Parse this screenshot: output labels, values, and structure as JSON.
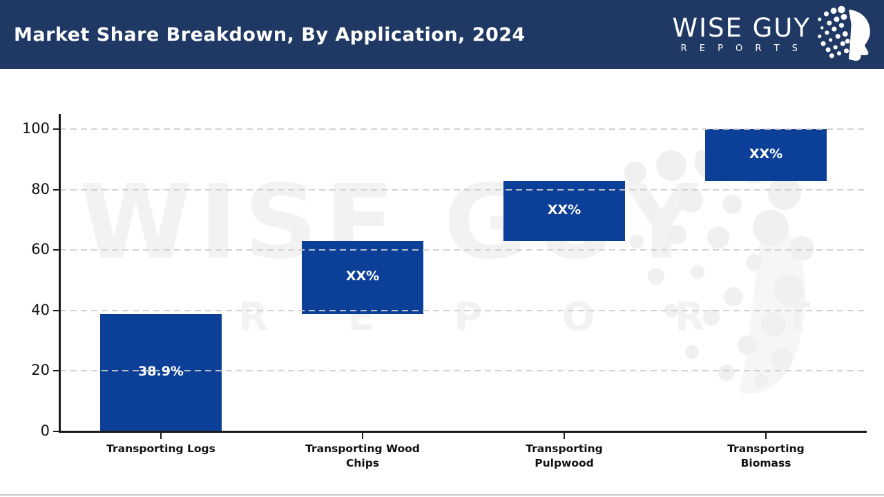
{
  "header": {
    "title": "Market Share Breakdown, By Application, 2024",
    "bg_color": "#1f3864",
    "text_color": "#ffffff"
  },
  "logo": {
    "name": "WISE GUY",
    "subtitle": "R E P O R T S",
    "icon": "dotted-face-profile"
  },
  "watermark": {
    "line1": "WISE GUY",
    "line2": "R E P O R T S",
    "color": "#f2f2f2"
  },
  "chart_data": {
    "type": "bar",
    "subtype": "waterfall",
    "title": "Market Share Breakdown, By Application, 2024",
    "categories": [
      "Transporting Logs",
      "Transporting Wood\nChips",
      "Transporting\nPulpwood",
      "Transporting\nBiomass"
    ],
    "values": [
      38.9,
      24.1,
      19.8,
      17.2
    ],
    "starts": [
      0,
      38.9,
      63.0,
      82.8
    ],
    "ends": [
      38.9,
      63.0,
      82.8,
      100.0
    ],
    "bar_labels": [
      "38.9%",
      "XX%",
      "XX%",
      "XX%"
    ],
    "xlabel": "",
    "ylabel": "",
    "ylim": [
      0,
      105
    ],
    "yticks": [
      0,
      20,
      40,
      60,
      80,
      100
    ],
    "grid": "horizontal-dashed",
    "legend": "none",
    "bar_color": "#0c3f97",
    "bar_label_color": "#ffffff",
    "axis_color": "#1a1a1a"
  }
}
